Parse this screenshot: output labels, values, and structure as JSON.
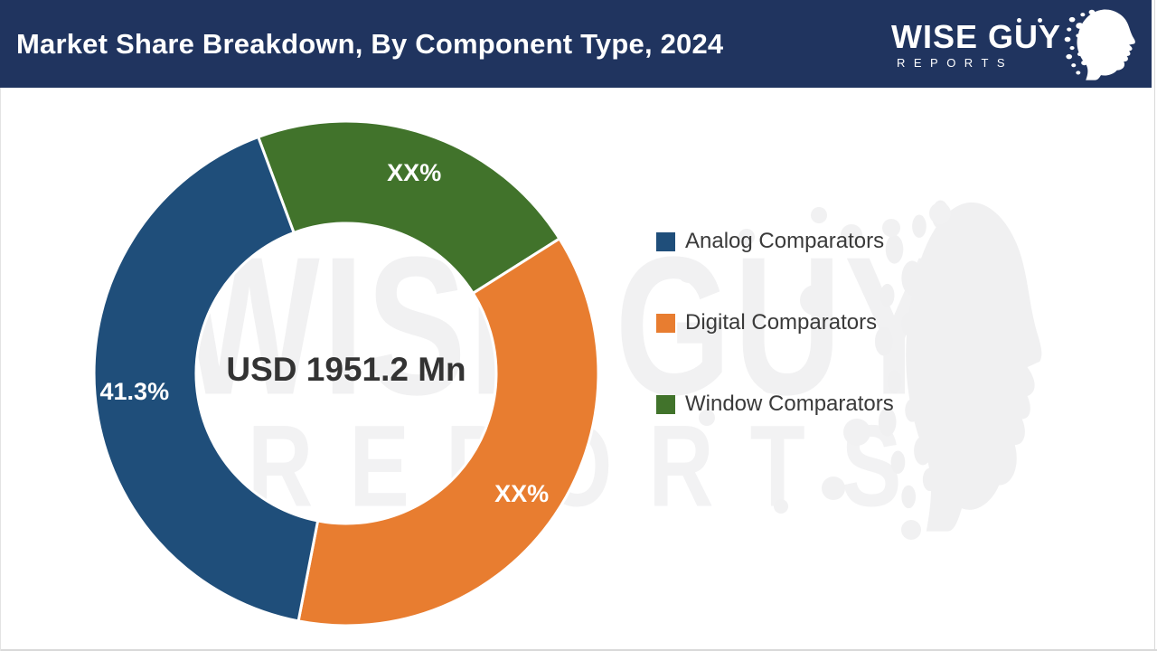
{
  "header": {
    "title": "Market Share Breakdown, By Component Type, 2024",
    "bg_color": "#20345F",
    "logo": {
      "line1": "WISE GUY",
      "line2": "REPORTS"
    }
  },
  "watermark": {
    "line1": "WISE GUY",
    "line2": "REPORTS"
  },
  "chart_data": {
    "type": "pie",
    "subtype": "donut",
    "center_label": "USD 1951.2 Mn",
    "start_angle_deg": -20.4,
    "slices": [
      {
        "label": "Window Comparators",
        "display_value": "XX%",
        "value_pct_est": 21.7,
        "color": "#41732B"
      },
      {
        "label": "Digital Comparators",
        "display_value": "XX%",
        "value_pct_est": 37.0,
        "color": "#E87D30"
      },
      {
        "label": "Analog Comparators",
        "display_value": "41.3%",
        "value_pct_est": 41.3,
        "color": "#1F4E7A"
      }
    ],
    "legend_position": "right"
  },
  "legend": {
    "items": [
      {
        "label": "Analog Comparators",
        "color": "#1F4E7A"
      },
      {
        "label": "Digital Comparators",
        "color": "#E87D30"
      },
      {
        "label": "Window Comparators",
        "color": "#41732B"
      }
    ]
  },
  "colors": {
    "header_bg": "#20345F",
    "analog_blue": "#1F4E7A",
    "digital_orange": "#E87D30",
    "window_green": "#41732B",
    "center_text": "#333333",
    "legend_text": "#3A3A3A",
    "watermark": "#F1F1F2",
    "edge_line": "#D9D9D9"
  }
}
